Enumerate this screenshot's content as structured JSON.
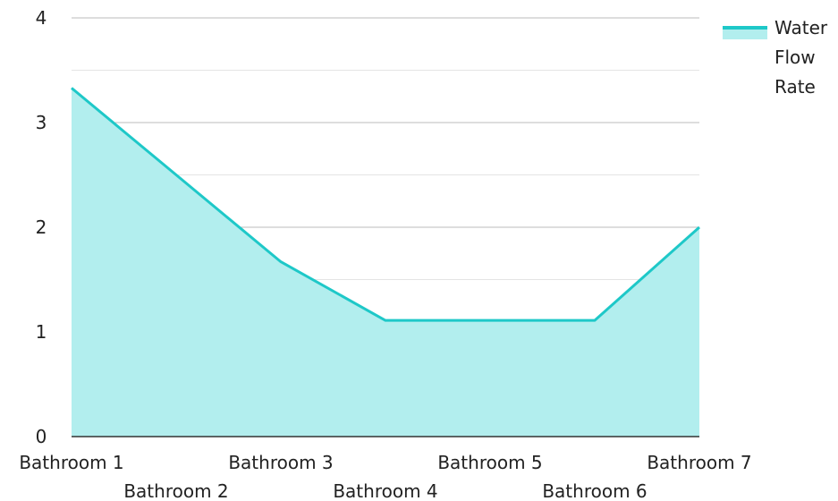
{
  "chart_data": {
    "type": "area",
    "categories": [
      "Bathroom 1",
      "Bathroom 2",
      "Bathroom 3",
      "Bathroom 4",
      "Bathroom 5",
      "Bathroom 6",
      "Bathroom 7"
    ],
    "series": [
      {
        "name": "Water Flow Rate",
        "values": [
          3.33,
          2.5,
          1.67,
          1.11,
          1.11,
          1.11,
          2.0
        ]
      }
    ],
    "y_ticks": [
      "0",
      "1",
      "2",
      "3",
      "4"
    ],
    "ylim": [
      0,
      4
    ],
    "grid": true,
    "legend_position": "top-right",
    "colors": {
      "line": "#1ec8c8",
      "fill": "#b2eeee",
      "grid_major": "#bbbbbb",
      "grid_minor": "#e4e4e4",
      "axis": "#333333"
    }
  }
}
